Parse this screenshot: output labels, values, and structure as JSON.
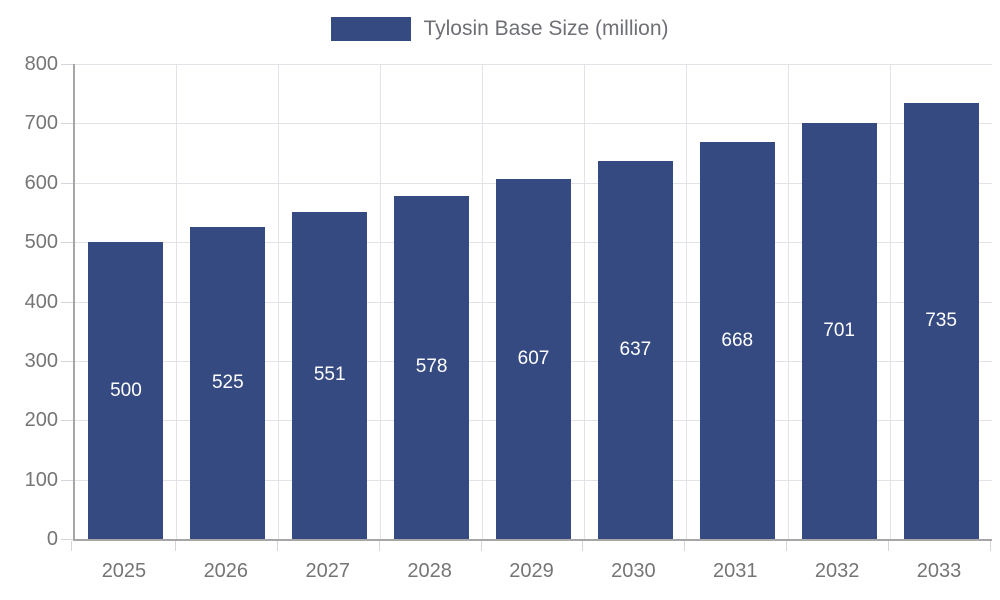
{
  "legend": {
    "label": "Tylosin Base Size (million)"
  },
  "chart_data": {
    "type": "bar",
    "title": "",
    "categories": [
      "2025",
      "2026",
      "2027",
      "2028",
      "2029",
      "2030",
      "2031",
      "2032",
      "2033"
    ],
    "series": [
      {
        "name": "Tylosin Base Size (million)",
        "values": [
          500,
          525,
          551,
          578,
          607,
          637,
          668,
          701,
          735
        ]
      }
    ],
    "value_labels": [
      500,
      525,
      551,
      578,
      607,
      637,
      668,
      701,
      735
    ],
    "value_label_position": "inside-center",
    "xlabel": "",
    "ylabel": "",
    "ylim": [
      0,
      800
    ],
    "ytick_interval": 100,
    "ytick_labels": [
      "0",
      "100",
      "200",
      "300",
      "400",
      "500",
      "600",
      "700",
      "800"
    ],
    "grid": true,
    "legend_position": "top-center",
    "colors": {
      "bar": "#364a82",
      "value_label": "#ffffff",
      "axis": "#a6a6a6",
      "gridline": "#e2e2e8",
      "tick": "#d4d4da",
      "axis_label": "#757575",
      "legend_text": "#6e7076"
    }
  }
}
